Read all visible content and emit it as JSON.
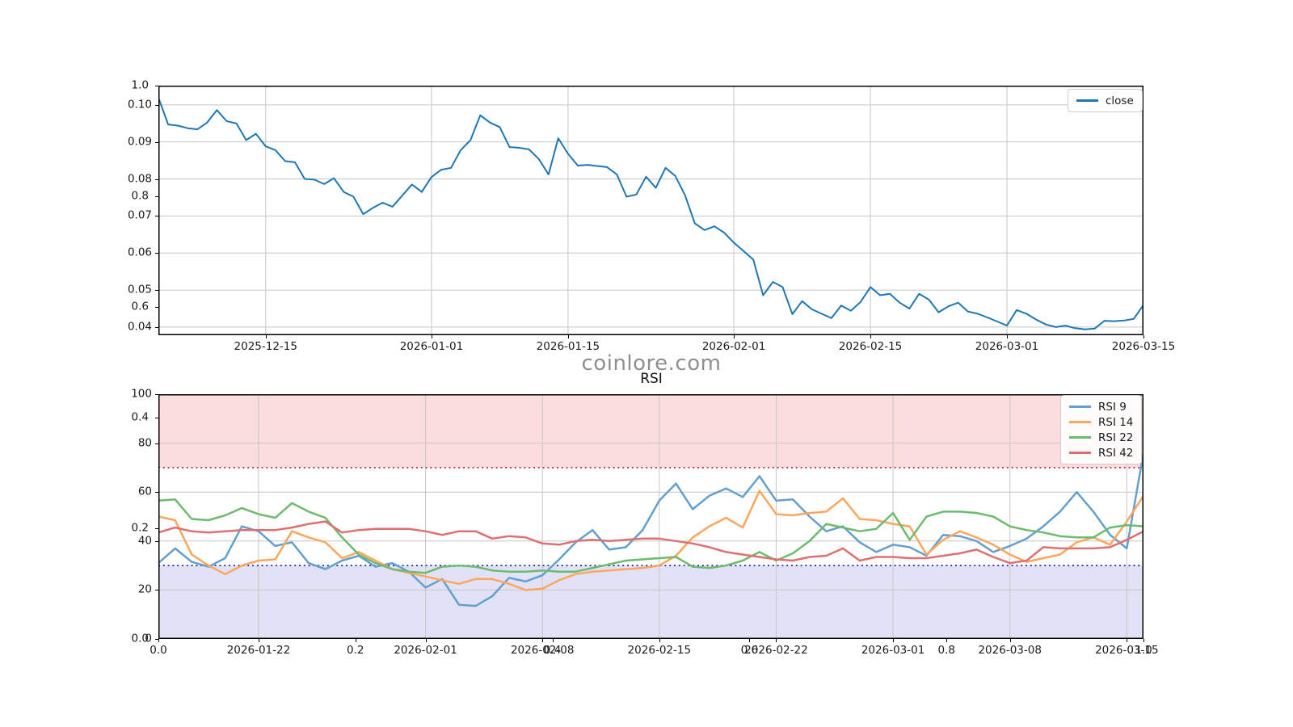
{
  "watermark": "coinlore.com",
  "colors": {
    "close": "#1f77b4",
    "rsi9": "#64a0cf",
    "rsi14": "#ffa65c",
    "rsi22": "#6dbb6d",
    "rsi42": "#e07070",
    "overbought_band": "#fbdddd",
    "oversold_band": "#e2e2f7",
    "overbought_line": "#d62030",
    "oversold_line": "#2020cc",
    "grid": "#c6c6c6",
    "frame": "#000000",
    "watermark_color": "#8f8f8f"
  },
  "ghost_axis": {
    "y_labels": [
      {
        "f": 1.0,
        "label": "1.0"
      },
      {
        "f": 0.8,
        "label": "0.8"
      },
      {
        "f": 0.6,
        "label": "0.6"
      },
      {
        "f": 0.4,
        "label": "0.4"
      },
      {
        "f": 0.2,
        "label": "0.2"
      },
      {
        "f": 0.0,
        "label": "0.0"
      }
    ],
    "x_labels": [
      {
        "f": 0.0,
        "label": "0.0"
      },
      {
        "f": 0.2,
        "label": "0.2"
      },
      {
        "f": 0.4,
        "label": "0.4"
      },
      {
        "f": 0.6,
        "label": "0.6"
      },
      {
        "f": 0.8,
        "label": "0.8"
      },
      {
        "f": 1.0,
        "label": "1.0"
      }
    ]
  },
  "chart_data": [
    {
      "type": "line",
      "title": "",
      "legend": [
        "close"
      ],
      "legend_position": "upper right",
      "grid": true,
      "ylim": [
        0.0378,
        0.1052
      ],
      "x_range_dates": [
        "2025-12-04",
        "2026-03-15"
      ],
      "x_ticks": [
        {
          "d": 11,
          "label": "2025-12-15"
        },
        {
          "d": 28,
          "label": "2026-01-01"
        },
        {
          "d": 42,
          "label": "2026-01-15"
        },
        {
          "d": 59,
          "label": "2026-02-01"
        },
        {
          "d": 73,
          "label": "2026-02-15"
        },
        {
          "d": 87,
          "label": "2026-03-01"
        },
        {
          "d": 101,
          "label": "2026-03-15"
        }
      ],
      "y_ticks": [
        {
          "v": 0.1,
          "label": "0.10"
        },
        {
          "v": 0.09,
          "label": "0.09"
        },
        {
          "v": 0.08,
          "label": "0.08"
        },
        {
          "v": 0.07,
          "label": "0.07"
        },
        {
          "v": 0.06,
          "label": "0.06"
        },
        {
          "v": 0.05,
          "label": "0.05"
        },
        {
          "v": 0.04,
          "label": "0.04"
        }
      ],
      "series": [
        {
          "name": "close",
          "color": "#1f77b4",
          "width": 2,
          "values": [
            0.102,
            0.0947,
            0.0944,
            0.0937,
            0.0934,
            0.0952,
            0.0986,
            0.0956,
            0.095,
            0.0905,
            0.0922,
            0.0888,
            0.0878,
            0.0848,
            0.0845,
            0.08,
            0.0798,
            0.0786,
            0.0802,
            0.0765,
            0.0752,
            0.0705,
            0.0722,
            0.0736,
            0.0725,
            0.0755,
            0.0785,
            0.0765,
            0.0805,
            0.0825,
            0.083,
            0.0878,
            0.0905,
            0.0972,
            0.0952,
            0.094,
            0.0886,
            0.0884,
            0.088,
            0.0854,
            0.0812,
            0.091,
            0.0868,
            0.0836,
            0.0838,
            0.0835,
            0.0832,
            0.0812,
            0.0752,
            0.0758,
            0.0806,
            0.0776,
            0.083,
            0.0808,
            0.0756,
            0.068,
            0.0662,
            0.0672,
            0.0655,
            0.0628,
            0.0605,
            0.0582,
            0.0486,
            0.0522,
            0.0508,
            0.0435,
            0.047,
            0.0448,
            0.0436,
            0.0424,
            0.0458,
            0.0444,
            0.0468,
            0.0508,
            0.0486,
            0.049,
            0.0466,
            0.045,
            0.049,
            0.0474,
            0.044,
            0.0456,
            0.0466,
            0.0442,
            0.0436,
            0.0426,
            0.0415,
            0.0404,
            0.0446,
            0.0436,
            0.042,
            0.0407,
            0.04,
            0.0404,
            0.0397,
            0.0394,
            0.0396,
            0.0417,
            0.0416,
            0.0418,
            0.0422,
            0.046
          ]
        }
      ]
    },
    {
      "type": "line",
      "title": "RSI",
      "legend": [
        "RSI 9",
        "RSI 14",
        "RSI 22",
        "RSI 42"
      ],
      "legend_position": "upper right",
      "grid": true,
      "ylim": [
        0,
        100
      ],
      "x_range_dates": [
        "2026-01-16",
        "2026-03-15"
      ],
      "bands": [
        {
          "name": "overbought-zone",
          "from": 70,
          "to": 100,
          "color": "#fbdddd"
        },
        {
          "name": "oversold-zone",
          "from": 0,
          "to": 30,
          "color": "#e2e2f7"
        }
      ],
      "ref_lines": [
        {
          "name": "overbought-level",
          "y": 70,
          "color": "#d62030"
        },
        {
          "name": "oversold-level",
          "y": 30,
          "color": "#2020cc"
        }
      ],
      "x_ticks": [
        {
          "d": 6,
          "label": "2026-01-22"
        },
        {
          "d": 16,
          "label": "2026-02-01"
        },
        {
          "d": 23,
          "label": "2026-02-08"
        },
        {
          "d": 30,
          "label": "2026-02-15"
        },
        {
          "d": 37,
          "label": "2026-02-22"
        },
        {
          "d": 44,
          "label": "2026-03-01"
        },
        {
          "d": 51,
          "label": "2026-03-08"
        },
        {
          "d": 58,
          "label": "2026-03-15"
        }
      ],
      "y_ticks": [
        {
          "v": 100,
          "label": "100"
        },
        {
          "v": 80,
          "label": "80"
        },
        {
          "v": 60,
          "label": "60"
        },
        {
          "v": 40,
          "label": "40"
        },
        {
          "v": 20,
          "label": "20"
        },
        {
          "v": 0,
          "label": "0"
        }
      ],
      "y_grid_values": [
        80,
        60,
        40,
        20
      ],
      "series": [
        {
          "name": "RSI 9",
          "color": "#64a0cf",
          "width": 2.5,
          "values": [
            31,
            37,
            31.5,
            29.5,
            33,
            46,
            44,
            38,
            39.5,
            31,
            28.5,
            32,
            34,
            29.5,
            31,
            27.5,
            21,
            24.5,
            14,
            13.5,
            17.5,
            25,
            23.5,
            26,
            32.5,
            39.5,
            44.5,
            36.5,
            37.5,
            44.5,
            56.5,
            63.5,
            53,
            58.5,
            61.5,
            58,
            66.5,
            56.5,
            57,
            50,
            44,
            46,
            39.5,
            35.5,
            38.5,
            37.5,
            34,
            42.5,
            42,
            40,
            35.5,
            38,
            41,
            46,
            52,
            60,
            52,
            42.5,
            37,
            76
          ]
        },
        {
          "name": "RSI 14",
          "color": "#ffa65c",
          "width": 2.5,
          "values": [
            50,
            48.5,
            34.5,
            30,
            26.5,
            30,
            32,
            32.5,
            44,
            41.5,
            39.5,
            33,
            35.5,
            32,
            28.5,
            27,
            25.5,
            24,
            22.5,
            24.5,
            24.5,
            22.5,
            20,
            20.5,
            24,
            26.5,
            27.5,
            28,
            28.5,
            29,
            30,
            34,
            41.5,
            46,
            49.5,
            45.5,
            60.5,
            51,
            50.5,
            51.5,
            52,
            57.5,
            49,
            48.5,
            47,
            46,
            34.5,
            40.5,
            44,
            41.5,
            38.5,
            34.5,
            31.5,
            33,
            34.5,
            39.5,
            41.5,
            38.5,
            48,
            58.5
          ]
        },
        {
          "name": "RSI 22",
          "color": "#6dbb6d",
          "width": 2.5,
          "values": [
            56.5,
            57,
            49,
            48.5,
            50.5,
            53.5,
            51,
            49.5,
            55.5,
            52,
            49.5,
            41.5,
            34.5,
            31,
            28.5,
            27.5,
            27,
            29.5,
            30,
            29.5,
            28,
            27.5,
            27.5,
            28,
            27.5,
            27.5,
            29,
            30.5,
            32,
            32.5,
            33,
            33.5,
            29.5,
            29,
            30,
            32,
            35.5,
            32,
            35,
            40,
            47,
            45.5,
            44,
            45,
            51.5,
            40.5,
            50,
            52,
            52,
            51.5,
            50,
            46,
            44.5,
            43.5,
            42,
            41.5,
            41.5,
            45.5,
            46.5,
            46
          ]
        },
        {
          "name": "RSI 42",
          "color": "#e07070",
          "width": 2.5,
          "values": [
            43.5,
            45.5,
            44,
            43.5,
            44,
            44.5,
            44.5,
            44.5,
            45.5,
            47,
            48,
            43.5,
            44.5,
            45,
            45,
            45,
            44,
            42.5,
            44,
            44,
            41,
            42,
            41.5,
            39,
            38.5,
            40,
            40.5,
            40,
            40.5,
            41,
            41,
            40,
            39,
            37.5,
            35.5,
            34.5,
            33.5,
            32.5,
            32,
            33.5,
            34,
            37,
            32,
            33.5,
            33.5,
            33,
            33,
            34,
            35,
            36.5,
            33.5,
            31,
            32,
            37.5,
            37,
            37,
            37,
            37.5,
            40.5,
            44
          ]
        }
      ]
    }
  ]
}
